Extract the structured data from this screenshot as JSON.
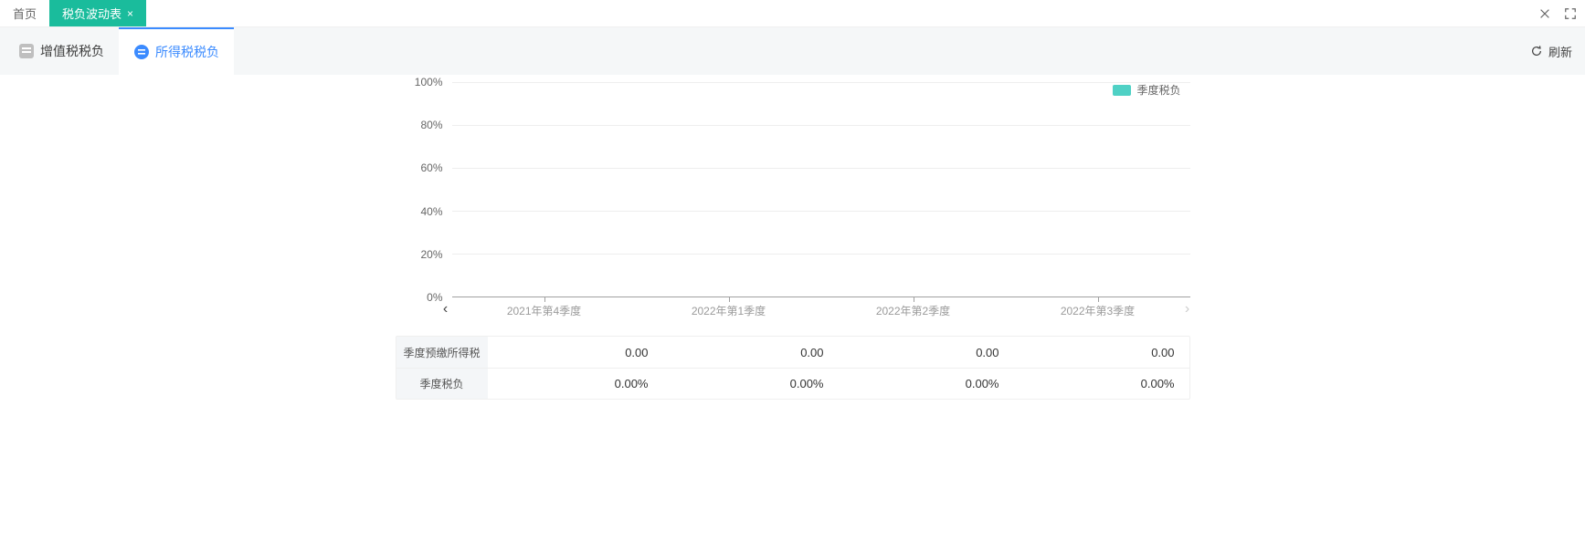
{
  "colors": {
    "accent_green": "#1abc9c",
    "accent_blue": "#3b8bff",
    "legend_swatch": "#4fd1c5",
    "grid": "#eeeeee",
    "axis": "#a0a0a0",
    "sub_band_bg": "#f5f7f8",
    "table_head_bg": "#f4f6f8"
  },
  "top_tabs": {
    "home": {
      "label": "首页"
    },
    "active": {
      "label": "税负波动表",
      "close_glyph": "×"
    }
  },
  "top_icons": {
    "close_title": "关闭",
    "fullscreen_title": "全屏"
  },
  "sub_tabs": [
    {
      "id": "vat",
      "label": "增值税税负",
      "active": false
    },
    {
      "id": "income",
      "label": "所得税税负",
      "active": true
    }
  ],
  "toolbar": {
    "refresh_label": "刷新"
  },
  "chart": {
    "type": "bar",
    "legend_label": "季度税负",
    "legend_color": "#4fd1c5",
    "background_color": "#ffffff",
    "grid_color": "#eeeeee",
    "axis_color": "#a0a0a0",
    "ylim": [
      0,
      100
    ],
    "y_unit": "%",
    "y_ticks": [
      0,
      20,
      40,
      60,
      80,
      100
    ],
    "y_tick_labels": [
      "0%",
      "20%",
      "40%",
      "60%",
      "80%",
      "100%"
    ],
    "categories": [
      "2021年第4季度",
      "2022年第1季度",
      "2022年第2季度",
      "2022年第3季度"
    ],
    "values": [
      0,
      0,
      0,
      0
    ],
    "bar_color": "#4fd1c5",
    "label_fontsize": 12,
    "label_color": "#9a9a9a",
    "pager": {
      "prev_enabled": true,
      "next_enabled": false,
      "prev_glyph": "‹",
      "next_glyph": "›"
    }
  },
  "summary_table": {
    "rows": [
      {
        "header": "季度预缴所得税",
        "cells": [
          "0.00",
          "0.00",
          "0.00",
          "0.00"
        ]
      },
      {
        "header": "季度税负",
        "cells": [
          "0.00%",
          "0.00%",
          "0.00%",
          "0.00%"
        ]
      }
    ]
  }
}
